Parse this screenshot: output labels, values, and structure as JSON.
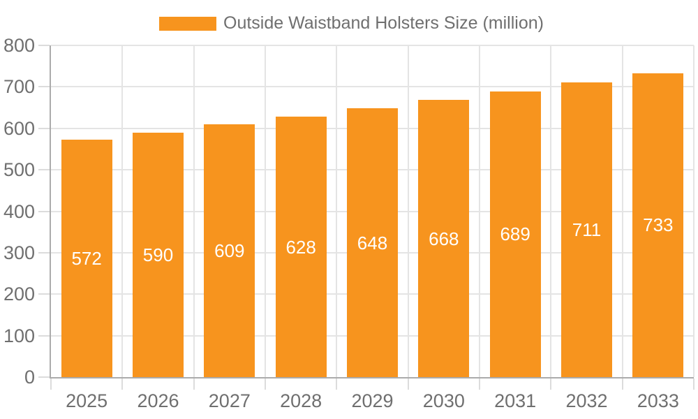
{
  "legend": {
    "label": "Outside Waistband Holsters Size (million)"
  },
  "chart_data": {
    "type": "bar",
    "title": "",
    "categories": [
      "2025",
      "2026",
      "2027",
      "2028",
      "2029",
      "2030",
      "2031",
      "2032",
      "2033"
    ],
    "series": [
      {
        "name": "Outside Waistband Holsters Size (million)",
        "values": [
          572,
          590,
          609,
          628,
          648,
          668,
          689,
          711,
          733
        ]
      }
    ],
    "bar_labels": [
      "572",
      "590",
      "609",
      "628",
      "648",
      "668",
      "689",
      "711",
      "733"
    ],
    "xlabel": "",
    "ylabel": "",
    "ylim": [
      0,
      800
    ],
    "y_ticks": [
      0,
      100,
      200,
      300,
      400,
      500,
      600,
      700,
      800
    ],
    "y_tick_labels": [
      "0",
      "100",
      "200",
      "300",
      "400",
      "500",
      "600",
      "700",
      "800"
    ],
    "grid": true,
    "legend_position": "top"
  },
  "colors": {
    "bar": "#F7941E",
    "bar_label": "#FFFFFF",
    "grid": "#E4E4E4",
    "tick": "#DCDCDC",
    "axis": "#ABABAB",
    "text": "#6F6F6F",
    "background": "#FFFFFF"
  }
}
